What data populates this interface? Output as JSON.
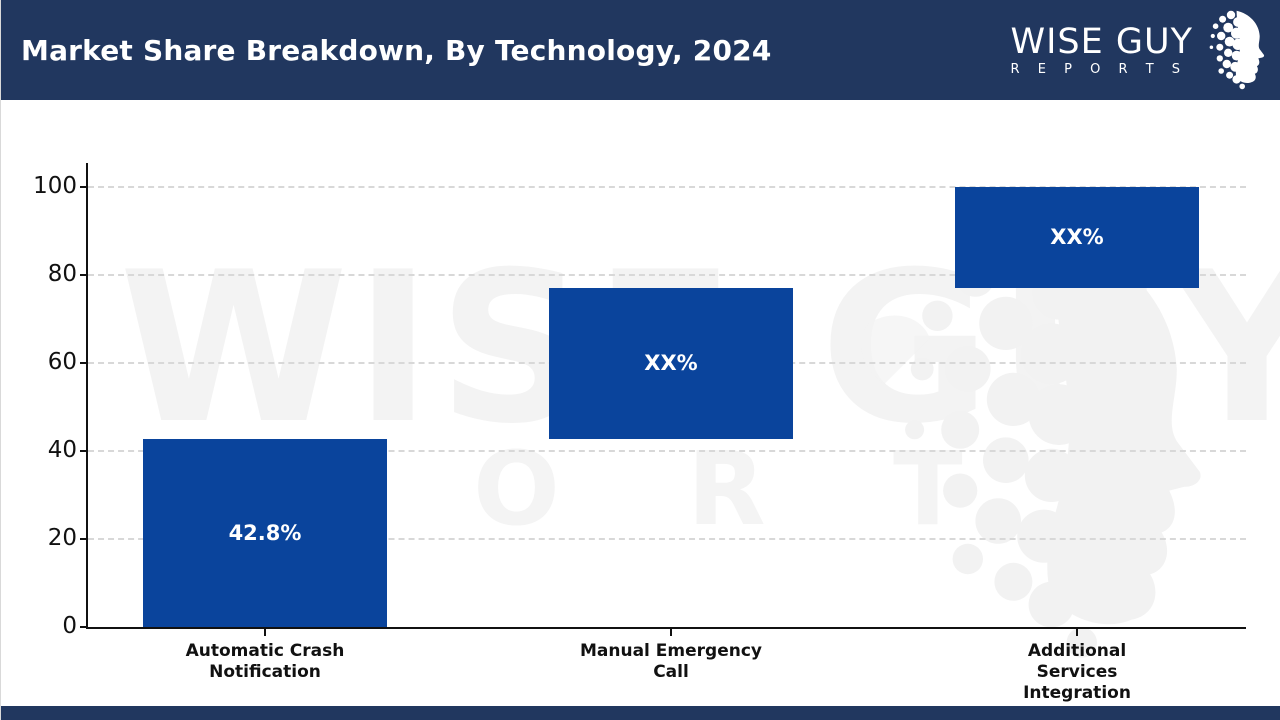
{
  "header": {
    "title": "Market Share Breakdown, By Technology, 2024",
    "bg_color": "#21375f",
    "logo": {
      "name": "WISE GUY",
      "sub": "R E P O R T S"
    }
  },
  "watermark": {
    "line1": "WISE GUY",
    "line2": "P O R T S"
  },
  "chart_data": {
    "type": "bar",
    "subtype": "waterfall",
    "title": "Market Share Breakdown, By Technology, 2024",
    "xlabel": "",
    "ylabel": "",
    "ylim": [
      0,
      100
    ],
    "yticks": [
      0,
      20,
      40,
      60,
      80,
      100
    ],
    "grid": "horizontal-dashed",
    "legend": "none",
    "categories": [
      {
        "lines": [
          "Automatic Crash",
          "Notification"
        ]
      },
      {
        "lines": [
          "Manual Emergency",
          "Call"
        ]
      },
      {
        "lines": [
          "Additional",
          "Services",
          "Integration"
        ]
      }
    ],
    "bars": [
      {
        "start": 0,
        "end": 42.8,
        "label": "42.8%"
      },
      {
        "start": 42.8,
        "end": 77.1,
        "label": "XX%"
      },
      {
        "start": 77.1,
        "end": 100,
        "label": "XX%"
      }
    ],
    "colors": {
      "bar": "#0a449c",
      "bar_label": "#ffffff",
      "grid": "#d8d8d8",
      "axis": "#111111",
      "header_bg": "#21375f"
    }
  }
}
